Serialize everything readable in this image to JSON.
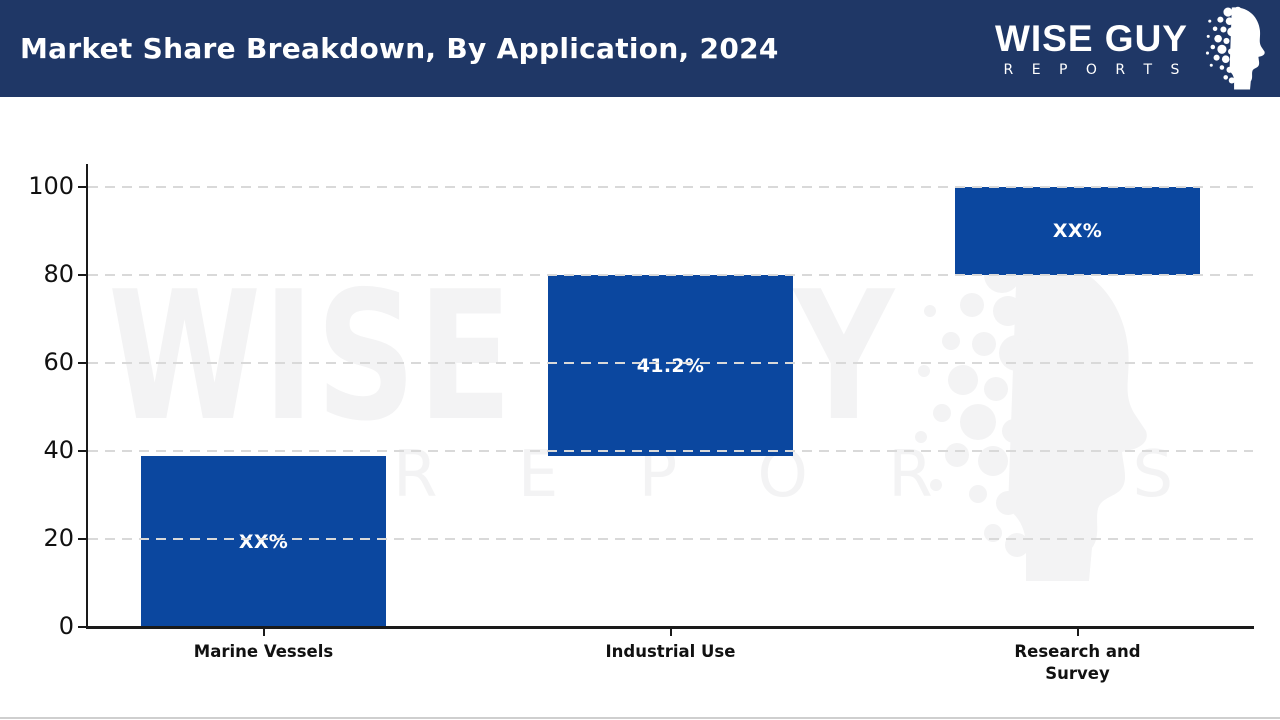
{
  "header": {
    "title": "Market Share Breakdown, By Application, 2024",
    "logo": {
      "line1": "WISE GUY",
      "line2": "R E P O R T S"
    }
  },
  "watermark": {
    "line1": "WISE GUY",
    "line2": "R E P O R T S"
  },
  "colors": {
    "header_bg": "#1f3766",
    "bar": "#0b479f",
    "grid": "#d9d9d9",
    "axis": "#1a1a1a",
    "bar_label": "#ffffff"
  },
  "chart_data": {
    "type": "bar",
    "subtype": "waterfall",
    "title": "Market Share Breakdown, By Application, 2024",
    "categories": [
      "Marine Vessels",
      "Industrial Use",
      "Research and Survey"
    ],
    "segments": [
      {
        "category": "Marine Vessels",
        "start": 0,
        "end": 38.8,
        "label": "XX%"
      },
      {
        "category": "Industrial Use",
        "start": 38.8,
        "end": 80,
        "label": "41.2%"
      },
      {
        "category": "Research and Survey",
        "start": 80,
        "end": 100,
        "label": "XX%"
      }
    ],
    "xlabel": "",
    "ylabel": "",
    "ylim": [
      0,
      100
    ],
    "yticks": [
      0,
      20,
      40,
      60,
      80,
      100
    ],
    "grid": "horizontal-dashed",
    "legend": "none",
    "bar_color": "#0b479f",
    "bar_label_color": "#ffffff"
  }
}
